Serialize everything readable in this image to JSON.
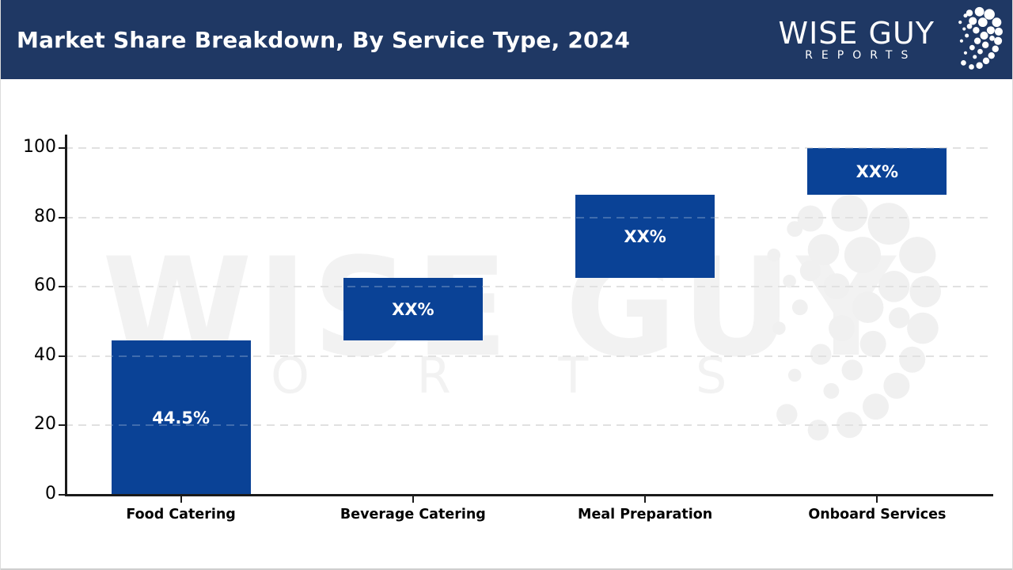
{
  "header": {
    "title": "Market Share Breakdown, By Service Type, 2024",
    "logo": {
      "line1": "WISE GUY",
      "line2": "REPORTS"
    }
  },
  "watermark": {
    "line1": "WISE GUY",
    "line2": "P O R T S"
  },
  "colors": {
    "header_bg": "#1f3864",
    "bar_fill": "#0a4296",
    "bar_label_text": "#ffffff",
    "gridline": "#d9d9d9",
    "axis": "#1a1a1a",
    "watermark": "#f2f2f2"
  },
  "chart_data": {
    "type": "bar",
    "subtype": "floating-waterfall",
    "title": "Market Share Breakdown, By Service Type, 2024",
    "categories": [
      "Food Catering",
      "Beverage Catering",
      "Meal Preparation",
      "Onboard Services"
    ],
    "bars": [
      {
        "category": "Food Catering",
        "start": 0,
        "end": 44.5,
        "label": "44.5%"
      },
      {
        "category": "Beverage Catering",
        "start": 44.5,
        "end": 62.5,
        "label": "XX%"
      },
      {
        "category": "Meal Preparation",
        "start": 62.5,
        "end": 86.5,
        "label": "XX%"
      },
      {
        "category": "Onboard Services",
        "start": 86.5,
        "end": 100,
        "label": "XX%"
      }
    ],
    "ylim": [
      0,
      100
    ],
    "yticks": [
      0,
      20,
      40,
      60,
      80,
      100
    ],
    "grid": "horizontal-dashed",
    "legend": "none",
    "xlabel": "",
    "ylabel": ""
  }
}
